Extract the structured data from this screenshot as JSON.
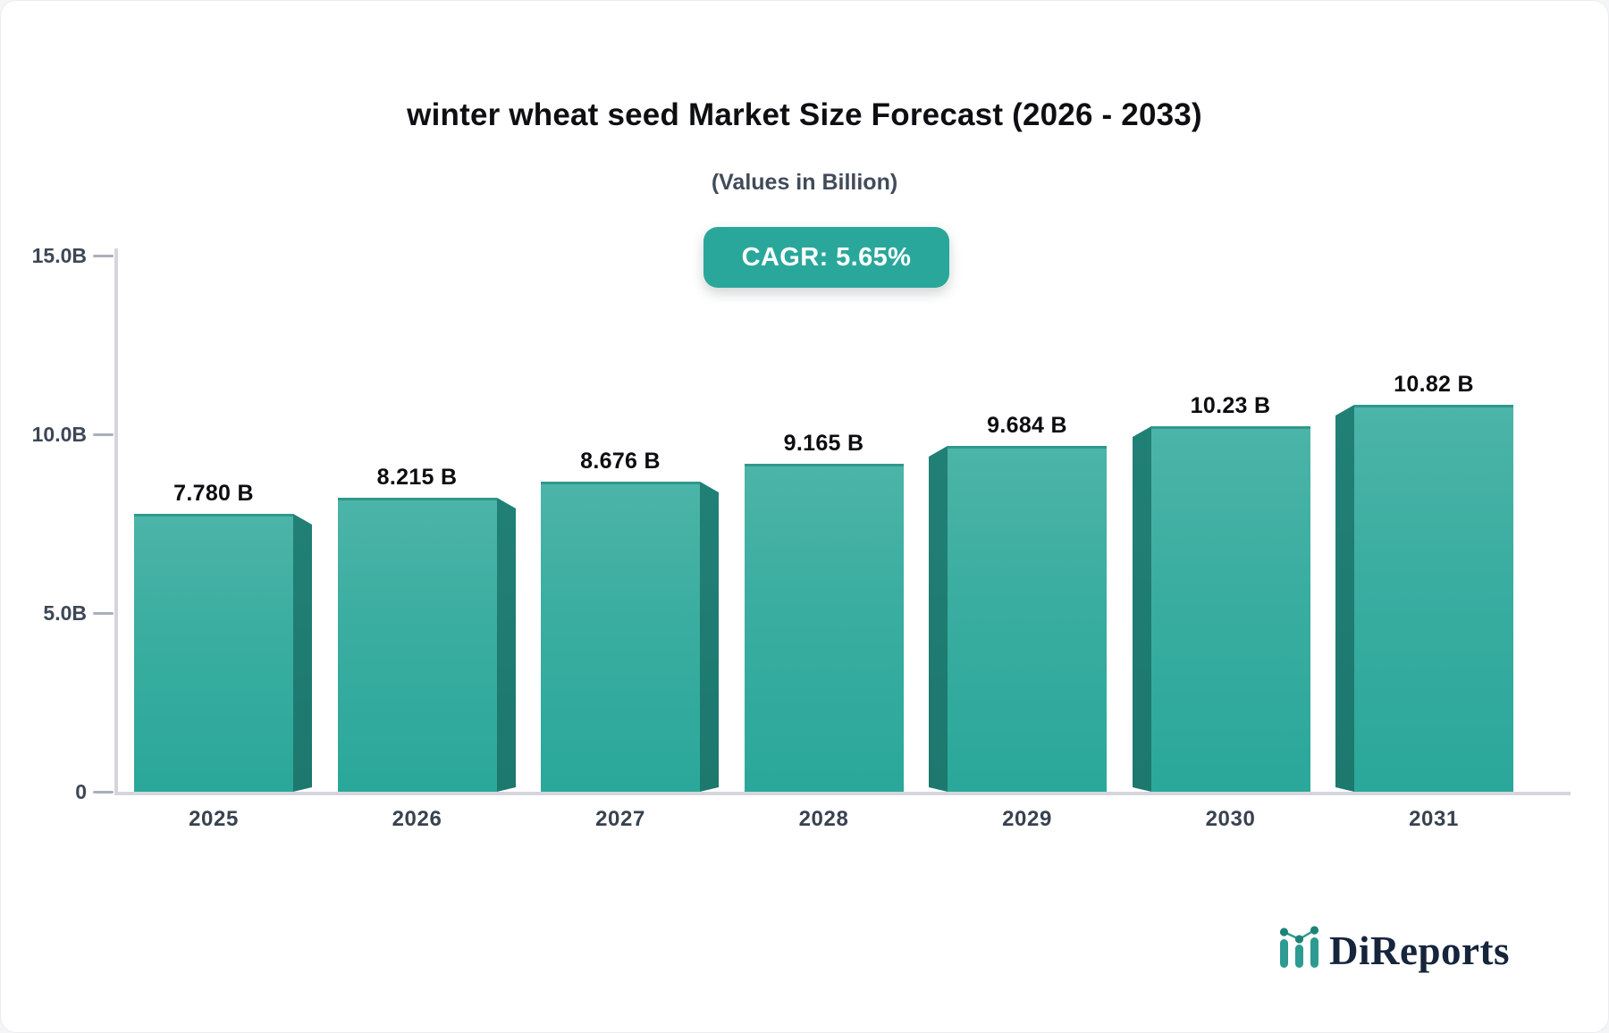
{
  "header": {
    "title": "winter wheat seed Market Size Forecast (2026 - 2033)",
    "subtitle": "(Values in Billion)"
  },
  "badge": {
    "label": "CAGR: 5.65%",
    "background": "#2aa79b",
    "cagr": "5.65%"
  },
  "brand": {
    "name": "DiReports",
    "icon": "mini-bar-line-chart-icon",
    "text_color": "#16243c",
    "icon_color": "#2d9b91",
    "icon_dot_color": "#1f8277"
  },
  "chart_data": {
    "type": "bar",
    "title": "winter wheat seed Market Size Forecast (2026 - 2033)",
    "subtitle": "(Values in Billion)",
    "unit": "Billion",
    "categories": [
      "2025",
      "2026",
      "2027",
      "2028",
      "2029",
      "2030",
      "2031"
    ],
    "values": [
      7.78,
      8.215,
      8.676,
      9.165,
      9.684,
      10.23,
      10.82
    ],
    "bar_labels": [
      "7.780 B",
      "8.215 B",
      "8.676 B",
      "9.165 B",
      "9.684 B",
      "10.23 B",
      "10.82 B"
    ],
    "y_axis": {
      "range": [
        0,
        15
      ],
      "ticks": [
        {
          "label": "15.0B",
          "value": 15
        },
        {
          "label": "10.0B",
          "value": 10
        },
        {
          "label": "5.0B",
          "value": 5
        },
        {
          "label": "0",
          "value": 0
        }
      ]
    },
    "grid": false,
    "legend": false,
    "bar_color_top": "#4cb4a8",
    "bar_color_bottom": "#2aa89a",
    "bar_side_color": "#1f7b71",
    "axis_color": "#d5d6dd",
    "cagr": "5.65%"
  }
}
